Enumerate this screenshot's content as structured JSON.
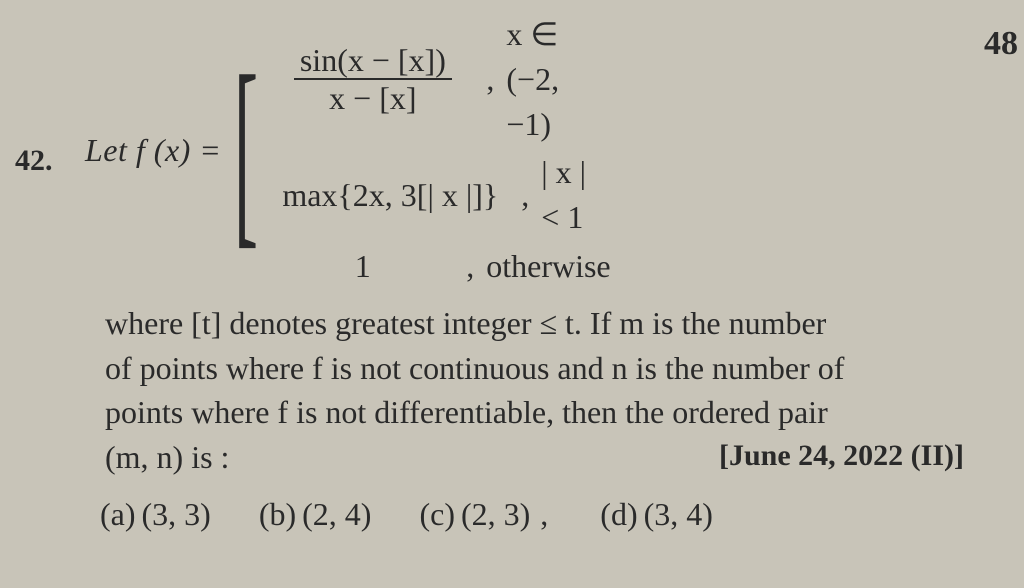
{
  "background_color": "#c8c4b8",
  "text_color": "#2a2a2a",
  "font_family": "Times New Roman",
  "question_number": "42.",
  "topright_partial": "48",
  "lhs": "Let f (x) =",
  "cases": [
    {
      "expr_numerator": "sin(x − [x])",
      "expr_denominator": "x − [x]",
      "is_fraction": true,
      "condition": "x ∈ (−2, −1)"
    },
    {
      "expr": "max{2x, 3[| x |]}",
      "is_fraction": false,
      "condition": "| x | < 1"
    },
    {
      "expr": "1",
      "is_fraction": false,
      "condition": "otherwise"
    }
  ],
  "body_line1": "where [t] denotes greatest integer ≤ t. If m is the number",
  "body_line2": "of points where f is not continuous and n is the number of",
  "body_line3": "points where f is not differentiable, then the ordered pair",
  "body_line4_left": "(m, n) is :",
  "exam_tag": "[June 24, 2022 (II)]",
  "options": {
    "a": {
      "label": "(a)",
      "value": "(3, 3)"
    },
    "b": {
      "label": "(b)",
      "value": "(2, 4)"
    },
    "c": {
      "label": "(c)",
      "value": "(2, 3)"
    },
    "d": {
      "label": "(d)",
      "value": "(3, 4)"
    }
  },
  "separator": ","
}
